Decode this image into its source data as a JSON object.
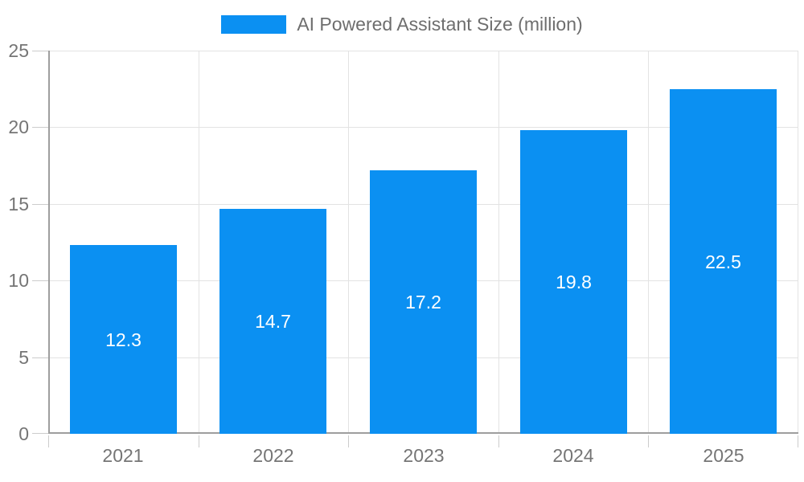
{
  "chart_data": {
    "type": "bar",
    "legend_label": "AI Powered Assistant Size (million)",
    "categories": [
      "2021",
      "2022",
      "2023",
      "2024",
      "2025"
    ],
    "values": [
      12.3,
      14.7,
      17.2,
      19.8,
      22.5
    ],
    "value_labels": [
      "12.3",
      "14.7",
      "17.2",
      "19.8",
      "22.5"
    ],
    "xlabel": "",
    "ylabel": "",
    "ylim": [
      0,
      25
    ],
    "yticks": [
      0,
      5,
      10,
      15,
      20,
      25
    ],
    "grid": true,
    "legend_position": "top-center",
    "colors": {
      "bar": "#0b90f2",
      "value_label_text": "#ffffff",
      "axis_label_text": "#757575",
      "legend_text": "#6e6e6e",
      "gridline": "#e3e3e3",
      "axis_line": "#9e9e9e",
      "tick": "#cccccc",
      "background": "#ffffff"
    }
  }
}
